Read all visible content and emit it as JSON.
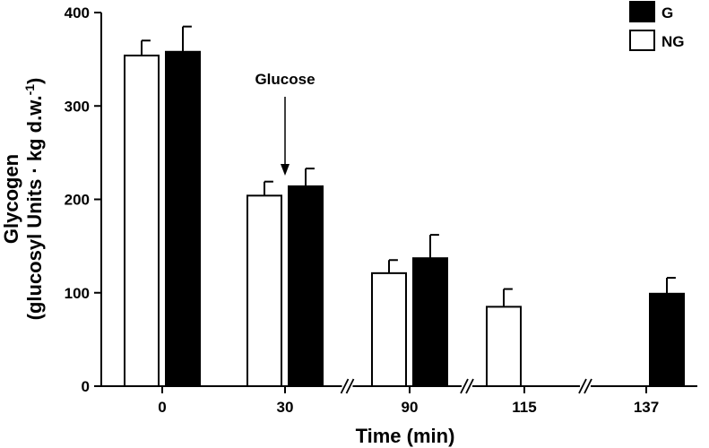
{
  "chart_data": {
    "type": "bar",
    "categories": [
      "0",
      "30",
      "90",
      "115",
      "137"
    ],
    "series": [
      {
        "name": "NG",
        "fill": "#ffffff",
        "values": [
          354,
          204,
          121,
          85,
          null
        ],
        "errors": [
          16,
          15,
          14,
          19,
          null
        ]
      },
      {
        "name": "G",
        "fill": "#000000",
        "values": [
          358,
          214,
          137,
          null,
          99
        ],
        "errors": [
          27,
          19,
          25,
          null,
          17
        ]
      }
    ],
    "title": "",
    "xlabel": "Time (min)",
    "ylabel_line1": "Glycogen",
    "ylabel_line2": "(glucosyl Units · kg d.w.",
    "ylabel_superscript": "-1",
    "ylabel_close": ")",
    "ylim": [
      0,
      400
    ],
    "yticks": [
      0,
      100,
      200,
      300,
      400
    ],
    "axis_breaks_after": [
      "30",
      "90",
      "115"
    ],
    "legend": {
      "placement": "top-right",
      "entries": [
        "G",
        "NG"
      ]
    },
    "annotation": {
      "text": "Glucose",
      "category": "30"
    },
    "grid": false
  }
}
